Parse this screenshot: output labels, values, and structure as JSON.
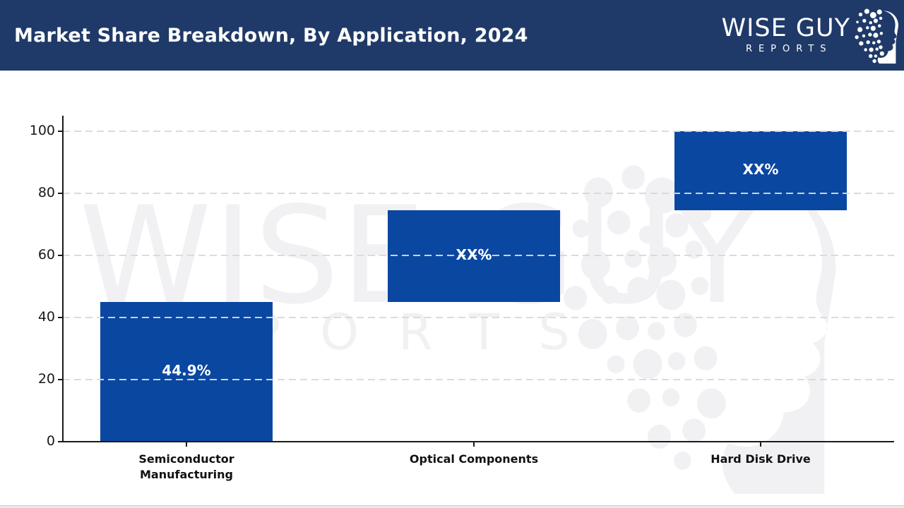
{
  "header": {
    "title": "Market Share Breakdown, By Application, 2024",
    "logo": {
      "name": "WISE GUY",
      "sub": "REPORTS"
    }
  },
  "watermark": {
    "line1": "WISE GUY",
    "line2": "REPORTS"
  },
  "colors": {
    "header_bg": "#1f3a68",
    "bar": "#0a47a1",
    "grid": "#d9d9d9",
    "axis": "#1a1a1a",
    "bar_label": "#ffffff",
    "watermark": "#f1f1f4"
  },
  "chart_data": {
    "type": "bar",
    "variant": "floating range bars (cumulative market-share waterfall)",
    "title": "Market Share Breakdown, By Application, 2024",
    "categories": [
      "Semiconductor\nManufacturing",
      "Optical Components",
      "Hard Disk Drive"
    ],
    "series": [
      {
        "name": "Market share (%)",
        "bars": [
          {
            "category": "Semiconductor Manufacturing",
            "start": 0,
            "end": 44.9,
            "label": "44.9%"
          },
          {
            "category": "Optical Components",
            "start": 45,
            "end": 74.5,
            "label": "XX%"
          },
          {
            "category": "Hard Disk Drive",
            "start": 74.5,
            "end": 100,
            "label": "XX%"
          }
        ]
      }
    ],
    "yticks": [
      0,
      20,
      40,
      60,
      80,
      100
    ],
    "ylim": [
      0,
      105
    ],
    "xlabel": "",
    "ylabel": "",
    "grid": "horizontal dashed, drawn over bars",
    "legend": "none"
  }
}
